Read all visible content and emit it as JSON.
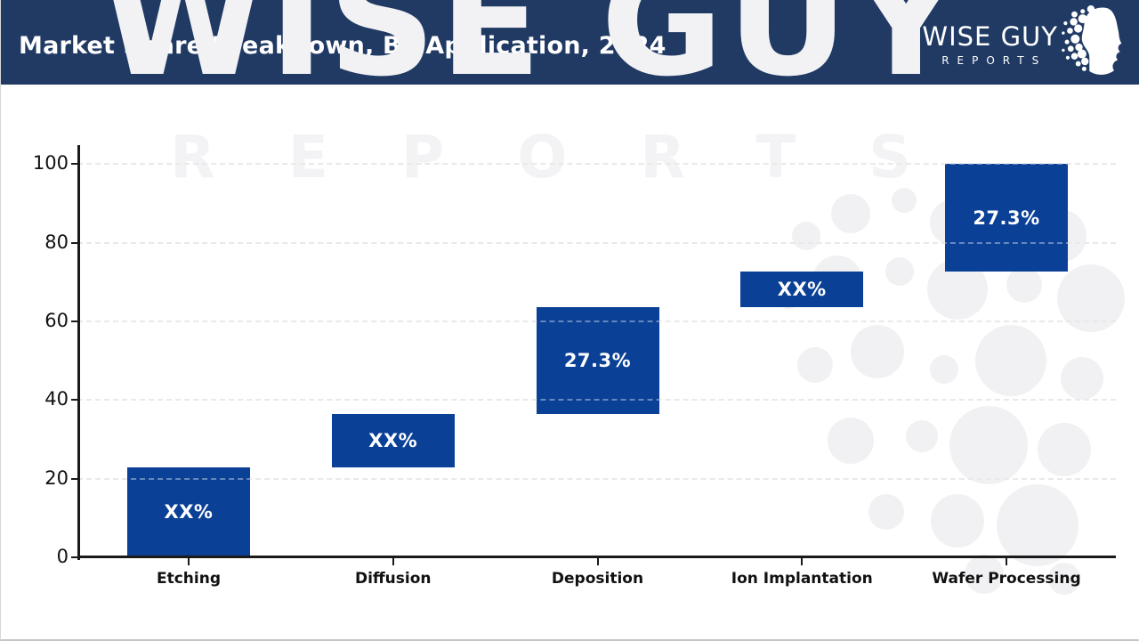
{
  "header": {
    "title": "Market Share Breakdown, By Application, 2024",
    "bg_color": "#203a64",
    "logo": {
      "line1": "WISE GUY",
      "line2": "REPORTS"
    }
  },
  "watermark": {
    "line1": "WISE GUY",
    "line2": "REPORTS"
  },
  "chart_data": {
    "type": "bar",
    "subtype": "floating-waterfall",
    "title": "Market Share Breakdown, By Application, 2024",
    "categories": [
      "Etching",
      "Diffusion",
      "Deposition",
      "Ion Implantation",
      "Wafer Processing"
    ],
    "series": [
      {
        "name": "Market Share (%)",
        "segments": [
          {
            "category": "Etching",
            "from": 0,
            "to": 22.9,
            "label": "XX%"
          },
          {
            "category": "Diffusion",
            "from": 22.9,
            "to": 36.4,
            "label": "XX%"
          },
          {
            "category": "Deposition",
            "from": 36.4,
            "to": 63.6,
            "label": "27.3%"
          },
          {
            "category": "Ion Implantation",
            "from": 63.6,
            "to": 72.7,
            "label": "XX%"
          },
          {
            "category": "Wafer Processing",
            "from": 72.7,
            "to": 100,
            "label": "27.3%"
          }
        ]
      }
    ],
    "xlabel": "",
    "ylabel": "",
    "ylim": [
      0,
      105
    ],
    "yticks": [
      0,
      20,
      40,
      60,
      80,
      100
    ],
    "grid": "horizontal-dashed",
    "legend": false,
    "bar_color": "#0a4096",
    "bar_label_color": "#ffffff",
    "axis_color": "#1a1a1a",
    "gridline_color": "#dcdcdc"
  }
}
